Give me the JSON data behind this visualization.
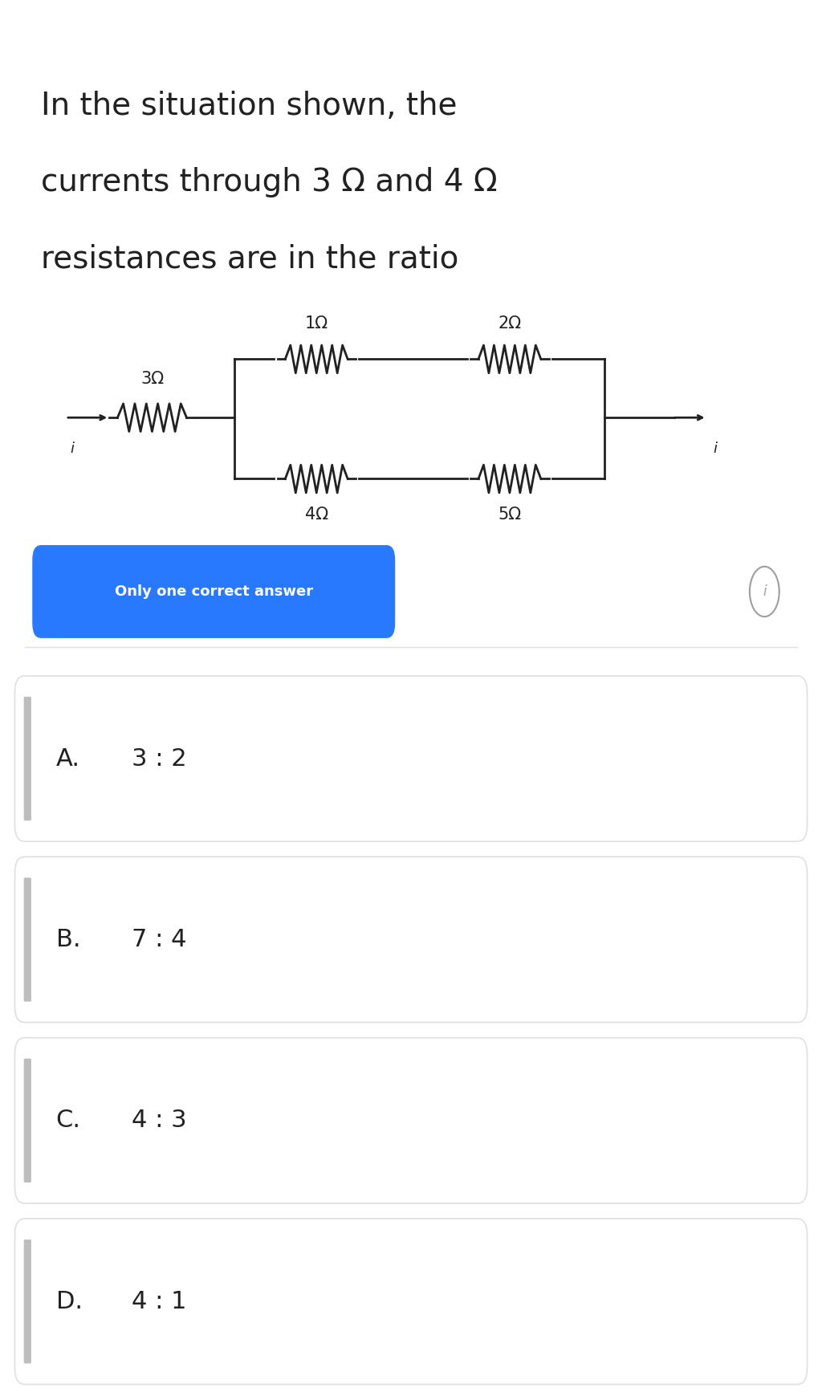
{
  "title_line1": "In the situation shown, the",
  "title_line2": "currents through 3 Ω and 4 Ω",
  "title_line3": "resistances are in the ratio",
  "bg_color": "#ffffff",
  "badge_text": "Only one correct answer",
  "badge_color": "#2979ff",
  "badge_text_color": "#ffffff",
  "options": [
    {
      "label": "A.",
      "text": "3 : 2"
    },
    {
      "label": "B.",
      "text": "7 : 4"
    },
    {
      "label": "C.",
      "text": "4 : 3"
    },
    {
      "label": "D.",
      "text": "4 : 1"
    }
  ],
  "option_box_color": "#ffffff",
  "option_border_color": "#e0e0e0",
  "option_text_color": "#212121",
  "title_color": "#212121",
  "circuit_color": "#212121",
  "divider_color": "#e0e0e0",
  "info_icon_color": "#9e9e9e",
  "label_1ohm": "1Ω",
  "label_2ohm": "2Ω",
  "label_3ohm": "3Ω",
  "label_4ohm": "4Ω",
  "label_5ohm": "5Ω"
}
